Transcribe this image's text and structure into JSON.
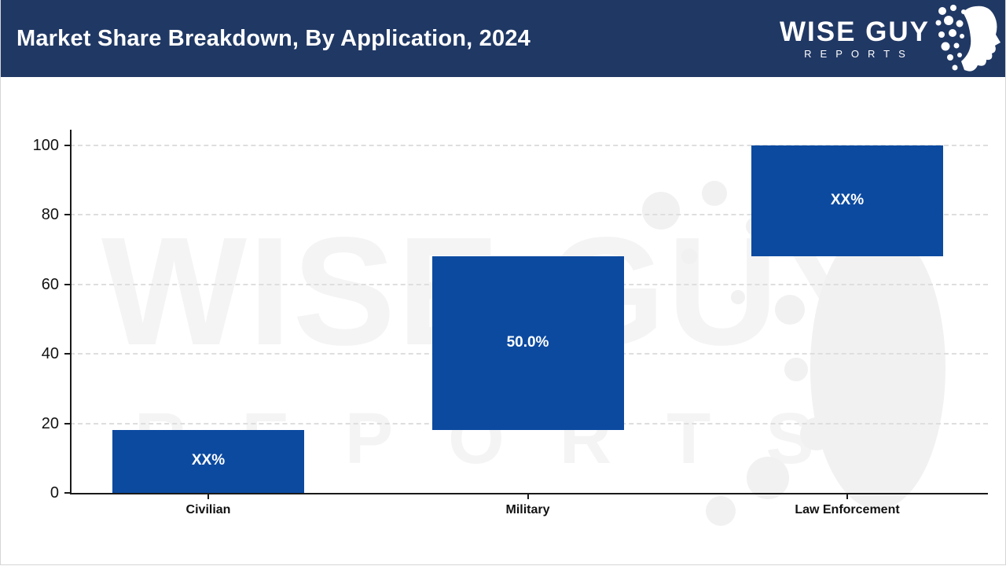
{
  "header": {
    "title": "Market Share Breakdown, By Application, 2024",
    "logo": {
      "line1": "WISE GUY",
      "line2": "REPORTS"
    }
  },
  "watermark": {
    "line1": "WISE GUY",
    "line2": "REPORTS"
  },
  "colors": {
    "header_bg": "#203864",
    "bar": "#0c4aa0",
    "grid": "#dedede",
    "axis": "#1a1a1a",
    "watermark": "#f4f4f4"
  },
  "chart_data": {
    "type": "bar",
    "subtype": "floating-range-bars",
    "title": "Market Share Breakdown, By Application, 2024",
    "categories": [
      "Civilian",
      "Military",
      "Law Enforcement"
    ],
    "bars": [
      {
        "category": "Civilian",
        "start": 0,
        "end": 18,
        "label": "XX%"
      },
      {
        "category": "Military",
        "start": 18,
        "end": 68,
        "label": "50.0%"
      },
      {
        "category": "Law Enforcement",
        "start": 68,
        "end": 100,
        "label": "XX%"
      }
    ],
    "xlabel": "",
    "ylabel": "",
    "ylim": [
      0,
      105
    ],
    "yticks": [
      0,
      20,
      40,
      60,
      80,
      100
    ],
    "grid": "horizontal-dashed",
    "legend": "none",
    "bar_value_labels": "inside-center, white bold"
  }
}
